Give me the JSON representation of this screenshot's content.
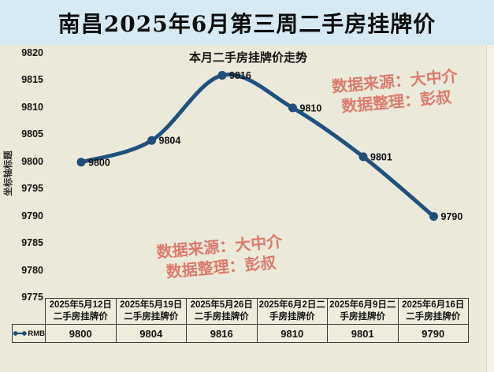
{
  "page": {
    "title": "南昌2025年6月第三周二手房挂牌价"
  },
  "chart": {
    "title": "本月二手房挂牌价走势",
    "y_axis_title": "坐标轴标题",
    "legend_label": "RMB",
    "watermark_line1": "数据来源：大中介",
    "watermark_line2": "数据整理：彭叔",
    "colors": {
      "line": "#20517e",
      "marker": "#1f4e79",
      "watermark": "#dd7b6c",
      "title_band_bg": "#d7eaf3",
      "plot_bg": "#ebe9d9",
      "table_cell_bg": "#eeecdd"
    }
  },
  "chart_data": {
    "type": "line",
    "smooth": true,
    "markers": true,
    "categories": [
      "2025年5月12日二手房挂牌价",
      "2025年5月19日二手房挂牌价",
      "2025年5月26日二手房挂牌价",
      "2025年6月2日二手房挂牌价",
      "2025年6月9日二手房挂牌价",
      "2025年6月16日二手房挂牌价"
    ],
    "series": [
      {
        "name": "RMB",
        "values": [
          9800,
          9804,
          9816,
          9810,
          9801,
          9790
        ]
      }
    ],
    "title": "本月二手房挂牌价走势",
    "xlabel": "",
    "ylabel": "坐标轴标题",
    "ylim": [
      9775,
      9820
    ],
    "ytick_step": 5,
    "yticks": [
      9820,
      9815,
      9810,
      9805,
      9800,
      9795,
      9790,
      9785,
      9780,
      9775
    ],
    "grid": false,
    "data_labels": true,
    "legend_position": "bottom-left"
  },
  "table": {
    "headers": [
      "2025年5月12日二手房挂牌价",
      "2025年5月19日二手房挂牌价",
      "2025年5月26日二手房挂牌价",
      "2025年6月2日二手房挂牌价",
      "2025年6月9日二手房挂牌价",
      "2025年6月16日二手房挂牌价"
    ],
    "values": [
      "9800",
      "9804",
      "9816",
      "9810",
      "9801",
      "9790"
    ]
  }
}
